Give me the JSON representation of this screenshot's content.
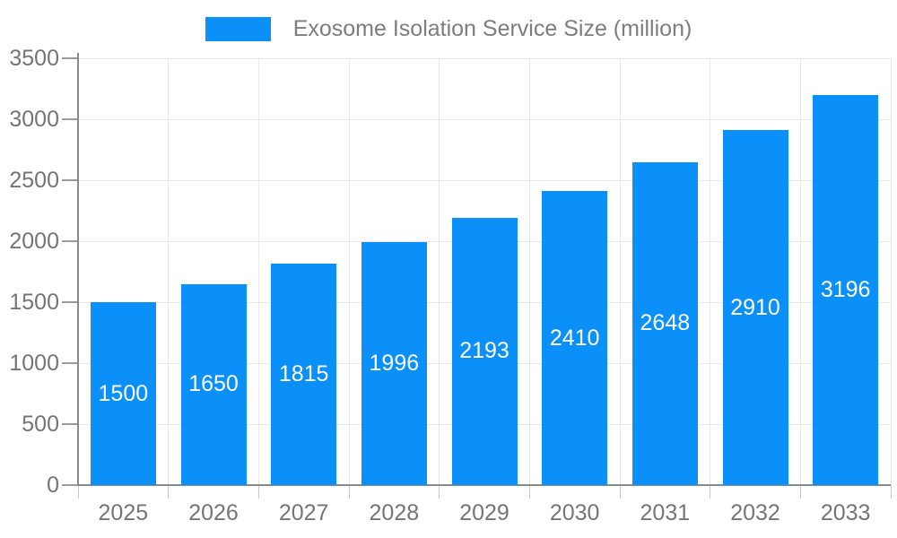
{
  "legend": {
    "label": "Exosome Isolation Service Size (million)"
  },
  "chart_data": {
    "type": "bar",
    "title": "Exosome Isolation Service Size (million)",
    "categories": [
      "2025",
      "2026",
      "2027",
      "2028",
      "2029",
      "2030",
      "2031",
      "2032",
      "2033"
    ],
    "values": [
      1500,
      1650,
      1815,
      1996,
      2193,
      2410,
      2648,
      2910,
      3196
    ],
    "xlabel": "",
    "ylabel": "",
    "ylim": [
      0,
      3500
    ],
    "yticks": [
      0,
      500,
      1000,
      1500,
      2000,
      2500,
      3000,
      3500
    ],
    "grid": true,
    "legend_position": "top",
    "colors": {
      "bar": "#0b90f9",
      "value_label": "#ffffff",
      "tick_label": "#757575",
      "legend_label": "#7d7d7d",
      "gridline": "#e8e8e8",
      "axis_line": "#8a8a8a"
    }
  }
}
